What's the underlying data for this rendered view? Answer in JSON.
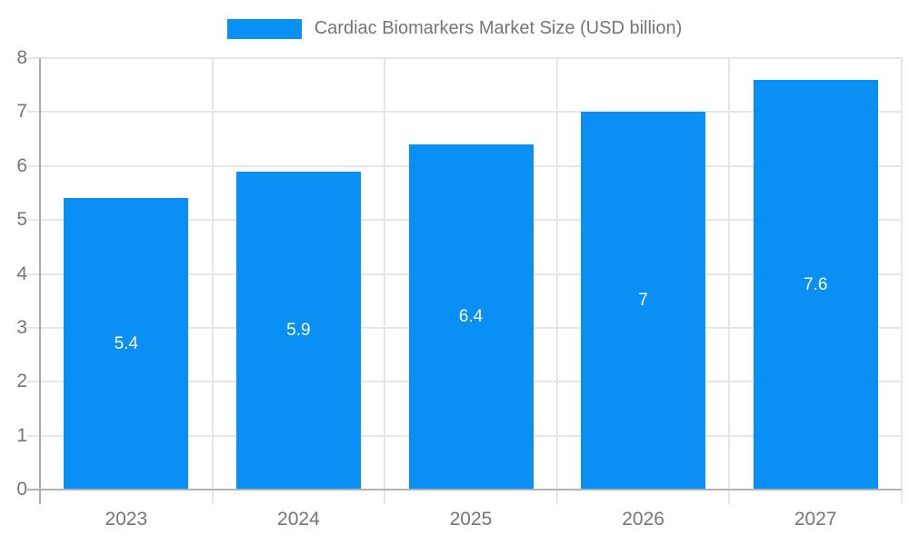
{
  "legend": {
    "label": "Cardiac Biomarkers Market Size (USD billion)",
    "swatch_color": "#0a8ff5"
  },
  "chart_data": {
    "type": "bar",
    "title": "Cardiac Biomarkers Market Size (USD billion)",
    "categories": [
      "2023",
      "2024",
      "2025",
      "2026",
      "2027"
    ],
    "values": [
      5.4,
      5.9,
      6.4,
      7,
      7.6
    ],
    "value_labels": [
      "5.4",
      "5.9",
      "6.4",
      "7",
      "7.6"
    ],
    "xlabel": "",
    "ylabel": "",
    "ylim": [
      0,
      8
    ],
    "y_ticks": [
      0,
      1,
      2,
      3,
      4,
      5,
      6,
      7,
      8
    ],
    "grid": true,
    "legend_position": "top",
    "colors": {
      "bar": "#0a8ff5",
      "axis_text": "#757575",
      "gridline": "#e6e6e6",
      "axis_line": "#ababab",
      "baseline": "#b3b3b3",
      "value_label": "#ffffff",
      "background": "#ffffff"
    }
  }
}
